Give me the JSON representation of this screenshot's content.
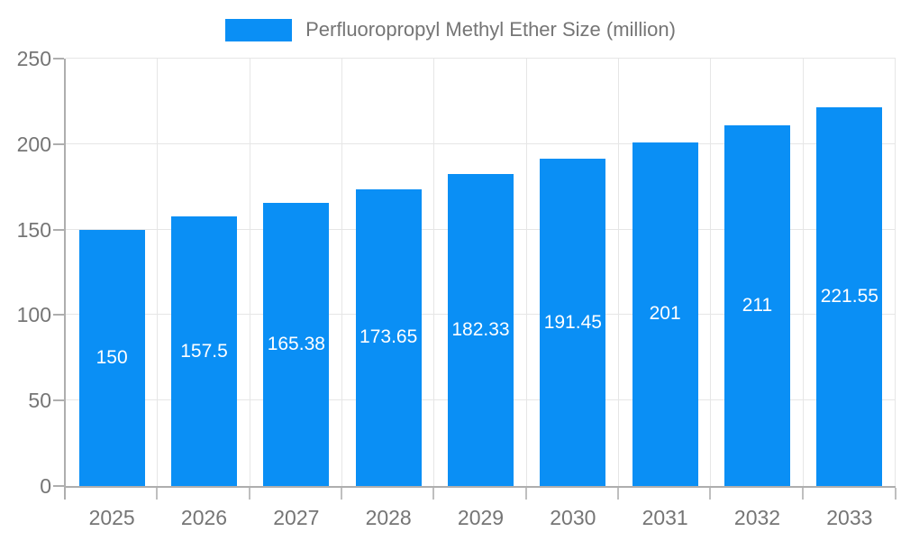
{
  "legend": {
    "label": "Perfluoropropyl Methyl Ether Size (million)"
  },
  "chart_data": {
    "type": "bar",
    "title": "Perfluoropropyl Methyl Ether Size (million)",
    "categories": [
      "2025",
      "2026",
      "2027",
      "2028",
      "2029",
      "2030",
      "2031",
      "2032",
      "2033"
    ],
    "values": [
      150,
      157.5,
      165.38,
      173.65,
      182.33,
      191.45,
      201,
      211,
      221.55
    ],
    "bar_labels": [
      "150",
      "157.5",
      "165.38",
      "173.65",
      "182.33",
      "191.45",
      "201",
      "211",
      "221.55"
    ],
    "y_ticks": [
      0,
      50,
      100,
      150,
      200,
      250
    ],
    "ylim": [
      0,
      250
    ],
    "xlabel": "",
    "ylabel": "",
    "grid": true,
    "legend_position": "top",
    "colors": {
      "bar": "#0a8ff5",
      "bar_label_text": "#ffffff",
      "axis_text": "#757575",
      "gridline": "#e6e6e6",
      "axis_line": "#aeaeae",
      "tick": "#bfbfbf"
    }
  }
}
